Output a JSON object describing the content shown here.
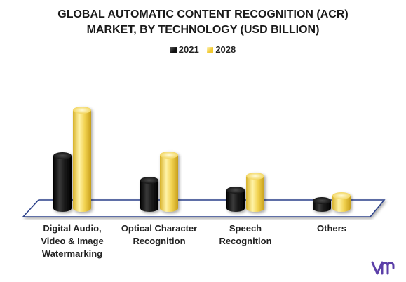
{
  "chart_data": {
    "type": "bar",
    "title_lines": [
      "GLOBAL AUTOMATIC CONTENT RECOGNITION (ACR)",
      "MARKET, BY TECHNOLOGY (USD BILLION)"
    ],
    "categories": [
      [
        "Digital Audio,",
        "Video & Image",
        "Watermarking"
      ],
      [
        "Optical Character",
        "Recognition"
      ],
      [
        "Speech",
        "Recognition"
      ],
      [
        "Others"
      ]
    ],
    "series": [
      {
        "name": "2021",
        "color": "#1a1a1a",
        "values": [
          7.5,
          4.0,
          2.6,
          1.1
        ]
      },
      {
        "name": "2028",
        "color": "#f5d75c",
        "values": [
          14.0,
          7.6,
          4.6,
          1.8
        ]
      }
    ],
    "ylim": [
      0,
      15
    ],
    "grid": false,
    "legend": "top-center"
  },
  "brand": {
    "color": "#5b3fa8",
    "icon": "vmr-logo-icon"
  }
}
